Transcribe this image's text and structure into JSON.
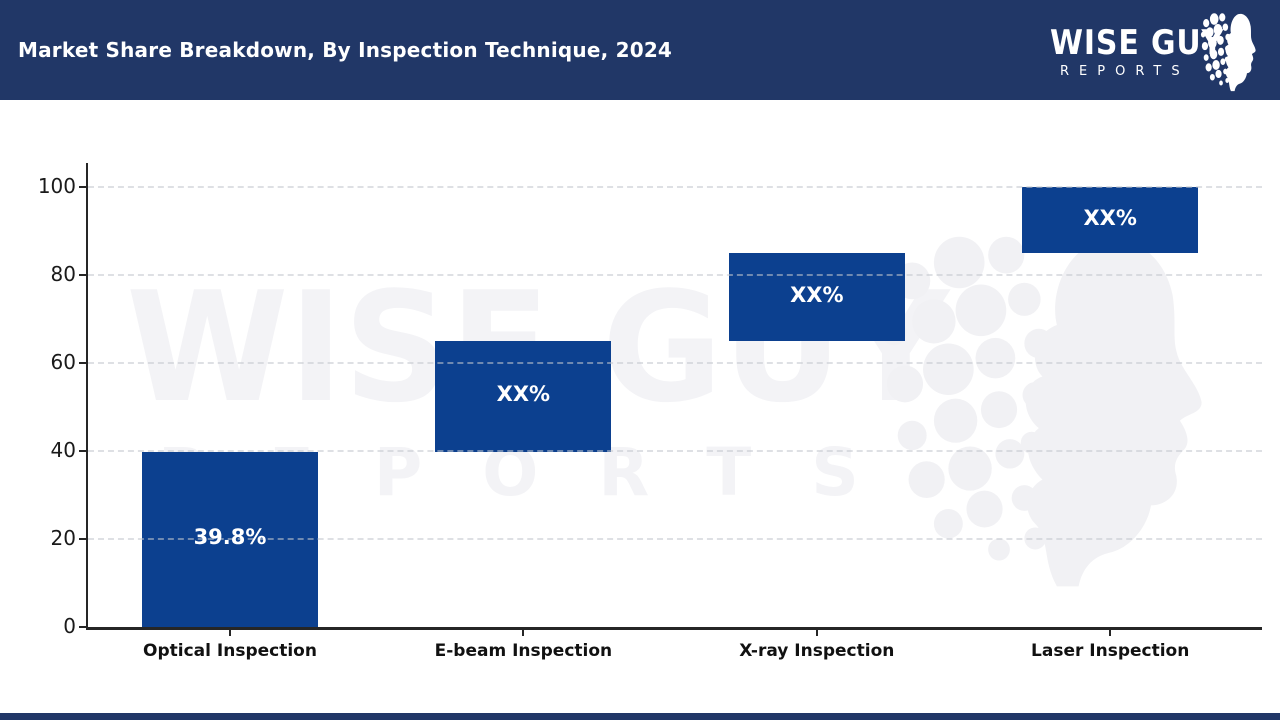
{
  "header": {
    "title": "Market Share Breakdown, By Inspection Technique, 2024",
    "logo": {
      "wordmark": "WISE GUY",
      "sub": "REPORTS"
    }
  },
  "watermark": {
    "line1": "WISE GUY",
    "line2": "REPORTS"
  },
  "colors": {
    "header_bg": "#213767",
    "footer_bg": "#213767",
    "bar": "#0c408f",
    "bar_label": "#ffffff",
    "grid": "#dfe1e8",
    "axis": "#262626",
    "watermark": "#f3f3f6"
  },
  "chart_data": {
    "type": "bar",
    "variant": "floating-waterfall",
    "title": "Market Share Breakdown, By Inspection Technique, 2024",
    "categories": [
      "Optical Inspection",
      "E-beam Inspection",
      "X-ray Inspection",
      "Laser Inspection"
    ],
    "segments": [
      {
        "category": "Optical Inspection",
        "start": 0,
        "end": 39.8,
        "label": "39.8%"
      },
      {
        "category": "E-beam Inspection",
        "start": 39.8,
        "end": 65,
        "label": "XX%"
      },
      {
        "category": "X-ray Inspection",
        "start": 65,
        "end": 85,
        "label": "XX%"
      },
      {
        "category": "Laser Inspection",
        "start": 85,
        "end": 100,
        "label": "XX%"
      }
    ],
    "yticks": [
      0,
      20,
      40,
      60,
      80,
      100
    ],
    "ylim": [
      0,
      105.5
    ],
    "xlabel": "",
    "ylabel": "",
    "grid": "horizontal-dashed",
    "legend_position": "none",
    "bar_color": "#0c408f",
    "bar_label_color": "#ffffff"
  }
}
